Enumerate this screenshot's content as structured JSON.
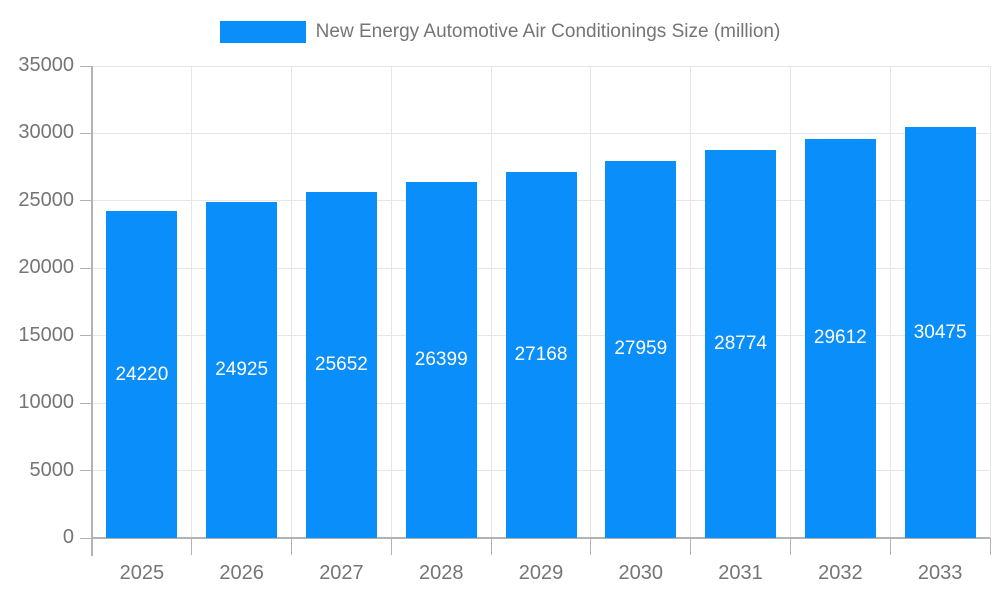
{
  "chart_data": {
    "type": "bar",
    "title": "New Energy Automotive Air Conditionings Size (million)",
    "categories": [
      "2025",
      "2026",
      "2027",
      "2028",
      "2029",
      "2030",
      "2031",
      "2032",
      "2033"
    ],
    "values": [
      24220,
      24925,
      25652,
      26399,
      27168,
      27959,
      28774,
      29612,
      30475
    ],
    "xlabel": "",
    "ylabel": "",
    "ylim": [
      0,
      35000
    ],
    "ytick_step": 5000,
    "ytick_labels": [
      "0",
      "5000",
      "10000",
      "15000",
      "20000",
      "25000",
      "30000",
      "35000"
    ],
    "grid": true,
    "legend_position": "top-center",
    "legend_entries": [
      "New Energy Automotive Air Conditionings Size (million)"
    ],
    "colors": {
      "bar": "#0a8ef9",
      "bar_value_label": "#ffffff",
      "axis_text": "#757575",
      "legend_text": "#757575",
      "gridline": "#e6e6e6",
      "axis_line": "#b3b3b3",
      "background": "#ffffff"
    }
  }
}
